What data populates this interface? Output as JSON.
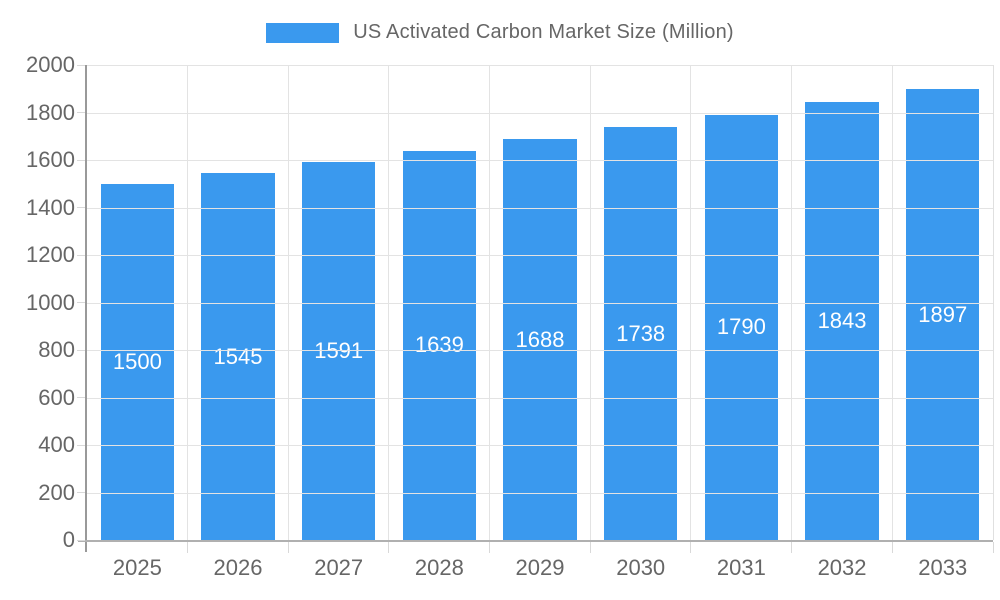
{
  "legend": {
    "label": "US Activated Carbon Market Size (Million)",
    "swatch_color": "#3A99EE"
  },
  "chart_data": {
    "type": "bar",
    "title": "US Activated Carbon Market Size (Million)",
    "categories": [
      "2025",
      "2026",
      "2027",
      "2028",
      "2029",
      "2030",
      "2031",
      "2032",
      "2033"
    ],
    "values": [
      1500,
      1545,
      1591,
      1639,
      1688,
      1738,
      1790,
      1843,
      1897
    ],
    "xlabel": "",
    "ylabel": "",
    "ylim": [
      0,
      2000
    ],
    "ytick_step": 200,
    "yticks": [
      0,
      200,
      400,
      600,
      800,
      1000,
      1200,
      1400,
      1600,
      1800,
      2000
    ],
    "grid": true,
    "legend_position": "top-center",
    "bar_color": "#3A99EE",
    "value_label_color": "#FFFFFF"
  },
  "colors": {
    "bar": "#3A99EE",
    "grid": "#E3E3E3",
    "y_axis_line": "#999999",
    "x_axis_line": "#B0B0B0",
    "axis_text": "#666666",
    "background": "#FFFFFF"
  }
}
